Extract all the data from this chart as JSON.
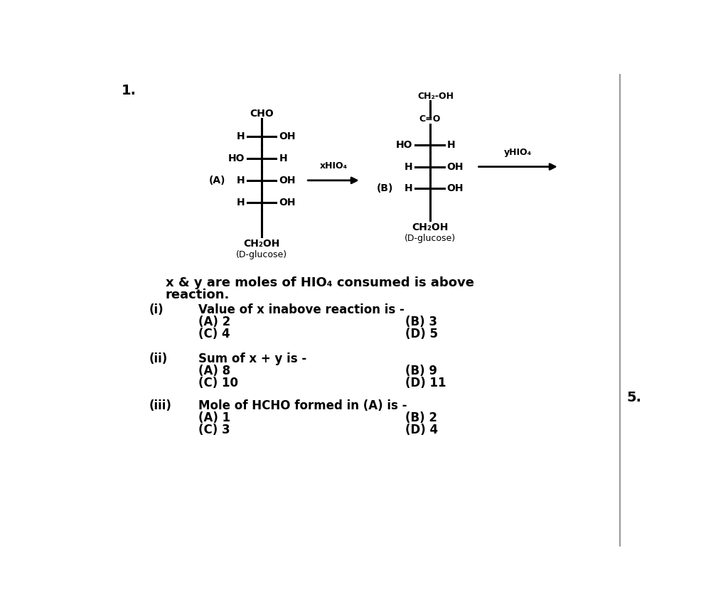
{
  "title_number": "1.",
  "side_number": "5.",
  "bg_color": "#ffffff",
  "text_color": "#000000",
  "struct_A": {
    "top_label": "CHO",
    "left_labels": [
      "H",
      "HO",
      "H",
      "H"
    ],
    "right_labels": [
      "OH",
      "H",
      "OH",
      "OH"
    ],
    "bottom_label": "CH₂OH",
    "sub_label": "(D-glucose)",
    "letter": "(A)"
  },
  "struct_B": {
    "top1_label": "CH₂-OH",
    "top2_label": "C=O",
    "left_labels": [
      "HO",
      "H",
      "H"
    ],
    "right_labels": [
      "H",
      "OH",
      "OH"
    ],
    "bottom_label": "CH₂OH",
    "sub_label": "(D-glucose)",
    "letter": "(B)"
  },
  "arrow1_label": "xHIO₄",
  "arrow2_label": "yHIO₄",
  "question_text": "x & y are moles of HIO₄ consumed is above\nreaction.",
  "sub_questions": [
    {
      "roman": "(i)",
      "question": "Value of x inabove reaction is -",
      "opt_A": "(A) 2",
      "opt_B": "(B) 3",
      "opt_C": "(C) 4",
      "opt_D": "(D) 5"
    },
    {
      "roman": "(ii)",
      "question": "Sum of x + y is -",
      "opt_A": "(A) 8",
      "opt_B": "(B) 9",
      "opt_C": "(C) 10",
      "opt_D": "(D) 11"
    },
    {
      "roman": "(iii)",
      "question": "Mole of HCHO formed in (A) is -",
      "opt_A": "(A) 1",
      "opt_B": "(B) 2",
      "opt_C": "(C) 3",
      "opt_D": "(D) 4"
    }
  ]
}
